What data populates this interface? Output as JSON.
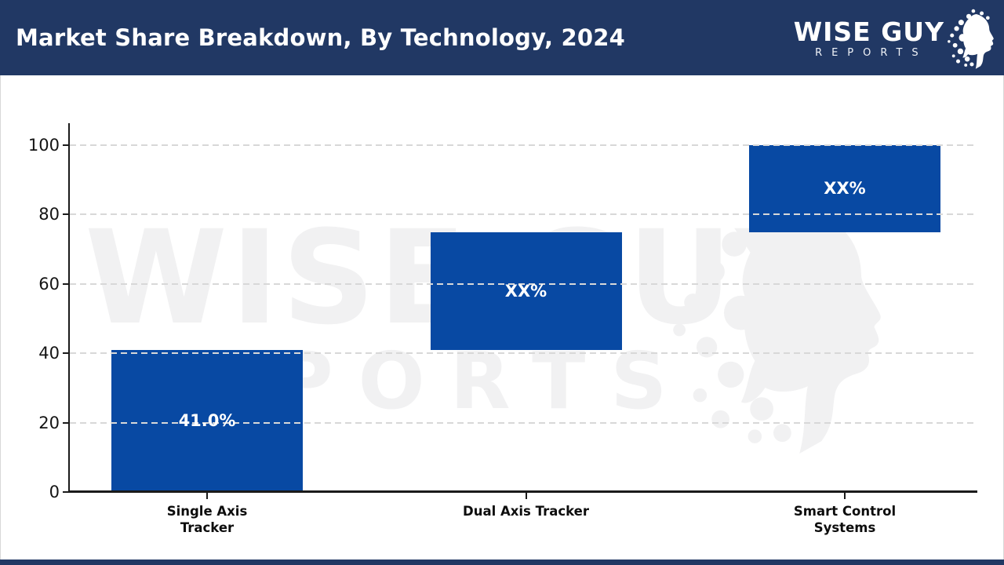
{
  "header": {
    "title": "Market Share Breakdown, By Technology, 2024",
    "logo": {
      "line1": "WISE GUY",
      "line2": "REPORTS"
    }
  },
  "watermark": {
    "line1": "WISE GUY",
    "line2": "REPORTS"
  },
  "footer": {},
  "colors": {
    "header_bg": "#213864",
    "footer_bg": "#213864",
    "bar": "#0849A3",
    "axis": "#1a1a1a",
    "grid": "#d8d8d8",
    "watermark": "#f1f1f2",
    "bar_label": "#ffffff"
  },
  "chart_data": {
    "type": "bar",
    "subtype": "floating-range-waterfall",
    "title": "Market Share Breakdown, By Technology, 2024",
    "categories": [
      "Single Axis Tracker",
      "Dual Axis Tracker",
      "Smart Control Systems"
    ],
    "category_label_lines": [
      [
        "Single Axis",
        "Tracker"
      ],
      [
        "Dual Axis Tracker"
      ],
      [
        "Smart Control",
        "Systems"
      ]
    ],
    "bars": [
      {
        "category": "Single Axis Tracker",
        "start": 0,
        "end": 41,
        "label": "41.0%"
      },
      {
        "category": "Dual Axis Tracker",
        "start": 41,
        "end": 75,
        "label": "XX%"
      },
      {
        "category": "Smart Control Systems",
        "start": 75,
        "end": 100,
        "label": "XX%"
      }
    ],
    "yticks": [
      0,
      20,
      40,
      60,
      80,
      100
    ],
    "ylim": [
      0,
      105
    ],
    "xlabel": "",
    "ylabel": "",
    "legend": null,
    "grid": {
      "axis": "y",
      "style": "dashed",
      "drawn_above_bars": true
    }
  }
}
